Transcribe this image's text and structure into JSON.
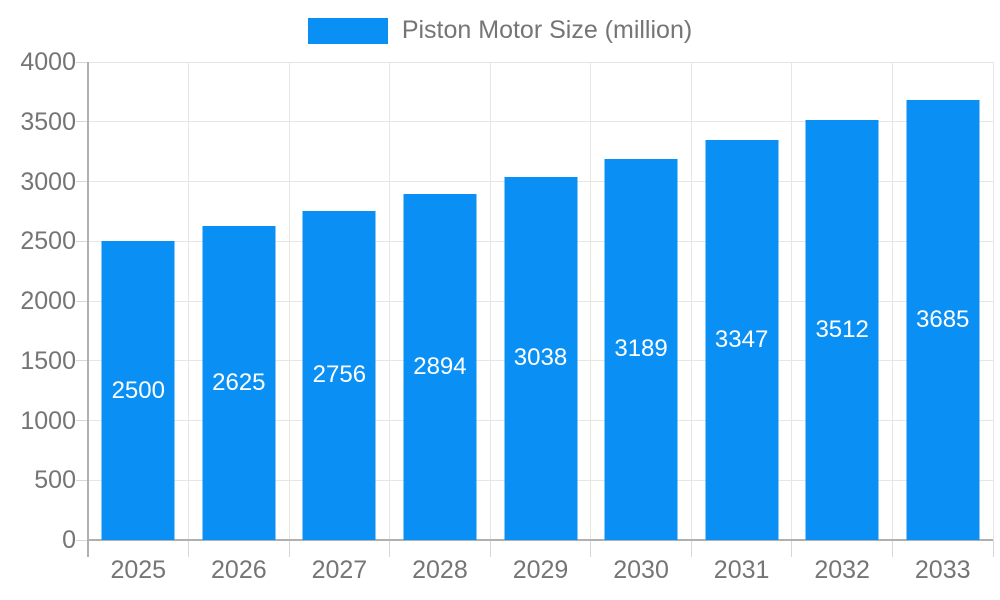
{
  "colors": {
    "bar": "#0a90f5",
    "grid": "#e6e6e6",
    "axis": "#b0b0b0",
    "tick": "#d6d6d6",
    "text": "#757575",
    "bar_label": "#ffffff",
    "background": "#ffffff"
  },
  "legend": {
    "swatch_color": "#0a90f5",
    "label": "Piston Motor Size (million)",
    "position": "top-center"
  },
  "chart_data": {
    "type": "bar",
    "title": "Piston Motor Size (million)",
    "series_name": "Piston Motor Size (million)",
    "categories": [
      "2025",
      "2026",
      "2027",
      "2028",
      "2029",
      "2030",
      "2031",
      "2032",
      "2033"
    ],
    "values": [
      2500,
      2625,
      2756,
      2894,
      3038,
      3189,
      3347,
      3512,
      3685
    ],
    "xlabel": "",
    "ylabel": "",
    "ylim": [
      0,
      4000
    ],
    "yticks": [
      0,
      500,
      1000,
      1500,
      2000,
      2500,
      3000,
      3500,
      4000
    ],
    "grid": true,
    "vertical_gridlines": true,
    "legend_position": "top",
    "bar_label_position": "inside-center"
  }
}
